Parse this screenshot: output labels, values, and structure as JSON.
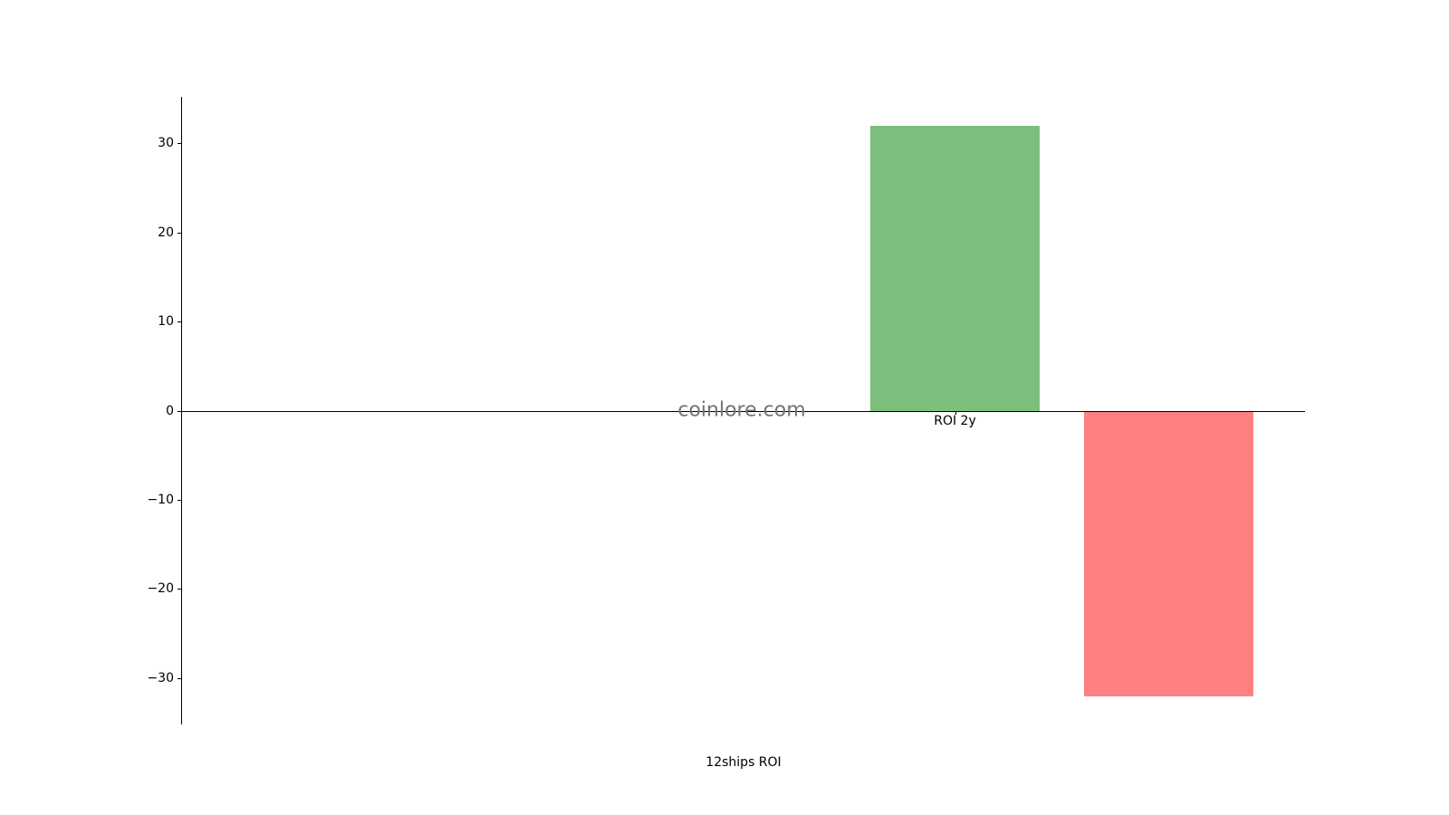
{
  "watermark": "coinlore.com",
  "chart_data": {
    "type": "bar",
    "title": "",
    "xlabel": "12ships ROI",
    "ylabel": "",
    "ylim": [
      -35.2,
      35.2
    ],
    "yticks": [
      30,
      20,
      10,
      0,
      -10,
      -20,
      -30
    ],
    "categories": [
      "ROI 2y",
      ""
    ],
    "bars": [
      {
        "label": "ROI 2y",
        "value": 32,
        "color": "#7cbe7c"
      },
      {
        "label": "",
        "value": -32,
        "color": "#ff8080"
      }
    ],
    "legend": "none",
    "grid": false,
    "axis_color": "#000000",
    "background_color": "#ffffff"
  }
}
